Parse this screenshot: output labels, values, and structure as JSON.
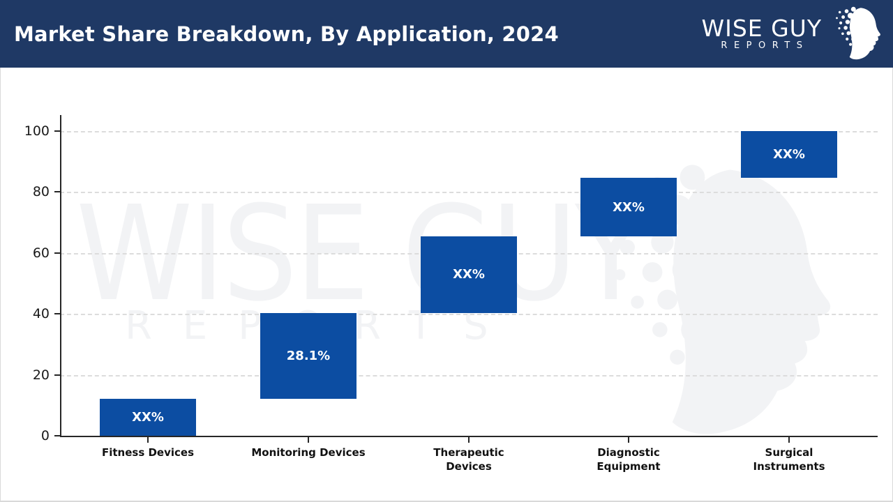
{
  "header": {
    "title": "Market Share Breakdown, By Application, 2024",
    "background_color": "#1f3965",
    "logo": {
      "line1": "WISE GUY",
      "line2": "REPORTS"
    }
  },
  "watermark": {
    "line1": "WISE GUY",
    "line2": "REPORTS"
  },
  "chart_data": {
    "type": "bar",
    "subtype": "waterfall",
    "title": "Market Share Breakdown, By Application, 2024",
    "categories": [
      "Fitness Devices",
      "Monitoring Devices",
      "Therapeutic Devices",
      "Diagnostic Equipment",
      "Surgical Instruments"
    ],
    "category_display": [
      "Fitness Devices",
      "Monitoring Devices",
      "Therapeutic\nDevices",
      "Diagnostic\nEquipment",
      "Surgical\nInstruments"
    ],
    "segments": [
      {
        "category": "Fitness Devices",
        "start": 0,
        "end": 12.2,
        "value": 12.2,
        "label": "XX%"
      },
      {
        "category": "Monitoring Devices",
        "start": 12.2,
        "end": 40.3,
        "value": 28.1,
        "label": "28.1%"
      },
      {
        "category": "Therapeutic Devices",
        "start": 40.3,
        "end": 65.4,
        "value": 25.1,
        "label": "XX%"
      },
      {
        "category": "Diagnostic Equipment",
        "start": 65.4,
        "end": 84.5,
        "value": 19.1,
        "label": "XX%"
      },
      {
        "category": "Surgical Instruments",
        "start": 84.5,
        "end": 100,
        "value": 15.5,
        "label": "XX%"
      }
    ],
    "xlabel": "",
    "ylabel": "",
    "ylim": [
      0,
      100
    ],
    "yticks": [
      0,
      20,
      40,
      60,
      80,
      100
    ],
    "grid": "horizontal-dashed",
    "legend": "none",
    "bar_color": "#0c4da2",
    "bar_label_color": "#ffffff",
    "axis_color": "#262626"
  }
}
